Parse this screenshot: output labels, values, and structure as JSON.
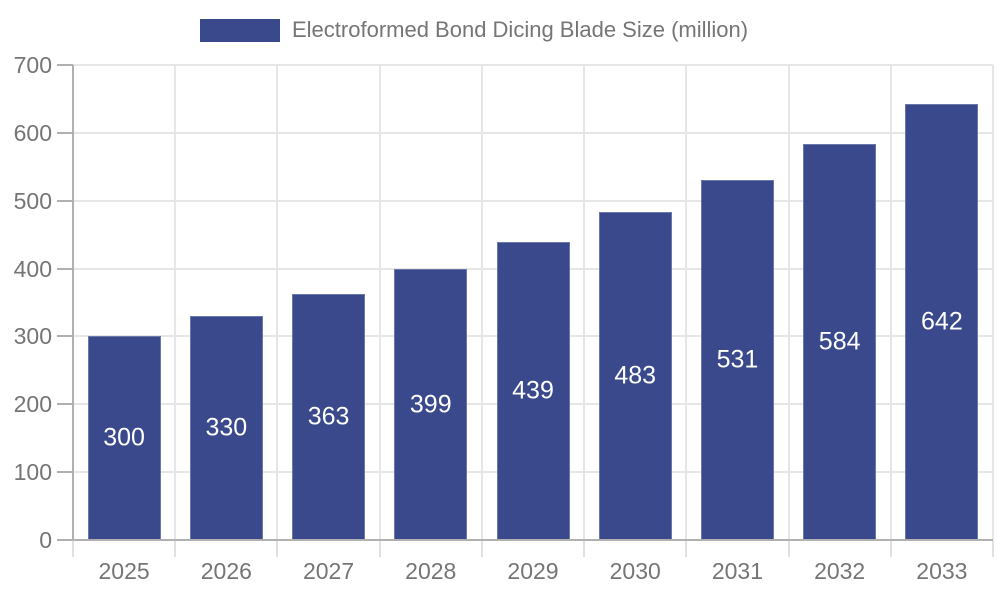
{
  "legend": {
    "label": "Electroformed Bond Dicing Blade Size (million)",
    "swatch_color": "#3A498C"
  },
  "chart_data": {
    "type": "bar",
    "title": "",
    "xlabel": "",
    "ylabel": "",
    "categories": [
      "2025",
      "2026",
      "2027",
      "2028",
      "2029",
      "2030",
      "2031",
      "2032",
      "2033"
    ],
    "series": [
      {
        "name": "Electroformed Bond Dicing Blade Size (million)",
        "values": [
          300,
          330,
          363,
          399,
          439,
          483,
          531,
          584,
          642
        ]
      }
    ],
    "value_labels_shown": true,
    "ylim": [
      0,
      700
    ],
    "yticks": [
      0,
      100,
      200,
      300,
      400,
      500,
      600,
      700
    ],
    "grid": true,
    "legend_position": "top-center",
    "colors": {
      "bar": "#3A498C",
      "value_label": "#ffffff",
      "axis_line": "#b0b0b0",
      "gridline": "#e6e6e6",
      "tick_label": "#757575",
      "background": "#ffffff"
    }
  }
}
